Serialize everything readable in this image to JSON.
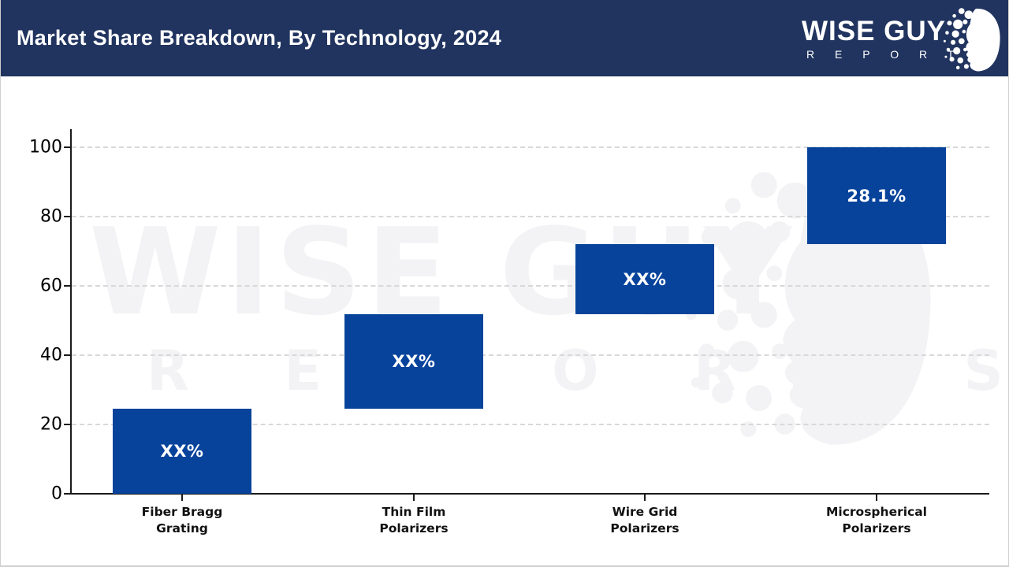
{
  "header": {
    "title": "Market Share Breakdown, By Technology, 2024",
    "logo": {
      "line1": "WISE GUY",
      "line2": "R E P O R T S"
    }
  },
  "watermark": {
    "line1": "WISE GUY",
    "line2": "R E P O R T S"
  },
  "colors": {
    "header_bg": "#21345f",
    "bar": "#07439b",
    "bar_label": "#ffffff",
    "grid": "#d8d8d8",
    "axis": "#1a1a1a",
    "watermark": "#f3f3f5"
  },
  "chart_data": {
    "type": "bar",
    "subtype": "waterfall-floating-bars",
    "title": "Market Share Breakdown, By Technology, 2024",
    "xlabel": "",
    "ylabel": "",
    "ylim": [
      0,
      100
    ],
    "yticks": [
      0,
      20,
      40,
      60,
      80,
      100
    ],
    "grid": "horizontal-dashed",
    "legend": "none",
    "categories": [
      "Fiber Bragg Grating",
      "Thin Film Polarizers",
      "Wire Grid Polarizers",
      "Microspherical Polarizers"
    ],
    "categories_wrapped": [
      [
        "Fiber Bragg",
        "Grating"
      ],
      [
        "Thin Film",
        "Polarizers"
      ],
      [
        "Wire Grid",
        "Polarizers"
      ],
      [
        "Microspherical",
        "Polarizers"
      ]
    ],
    "segments": [
      {
        "category": "Fiber Bragg Grating",
        "label": "XX%",
        "start": 0,
        "end": 24.5,
        "value": 24.5
      },
      {
        "category": "Thin Film Polarizers",
        "label": "XX%",
        "start": 24.5,
        "end": 51.8,
        "value": 27.3
      },
      {
        "category": "Wire Grid Polarizers",
        "label": "XX%",
        "start": 51.8,
        "end": 72.0,
        "value": 20.2
      },
      {
        "category": "Microspherical Polarizers",
        "label": "28.1%",
        "start": 72.0,
        "end": 100.0,
        "value": 28.1
      }
    ]
  }
}
